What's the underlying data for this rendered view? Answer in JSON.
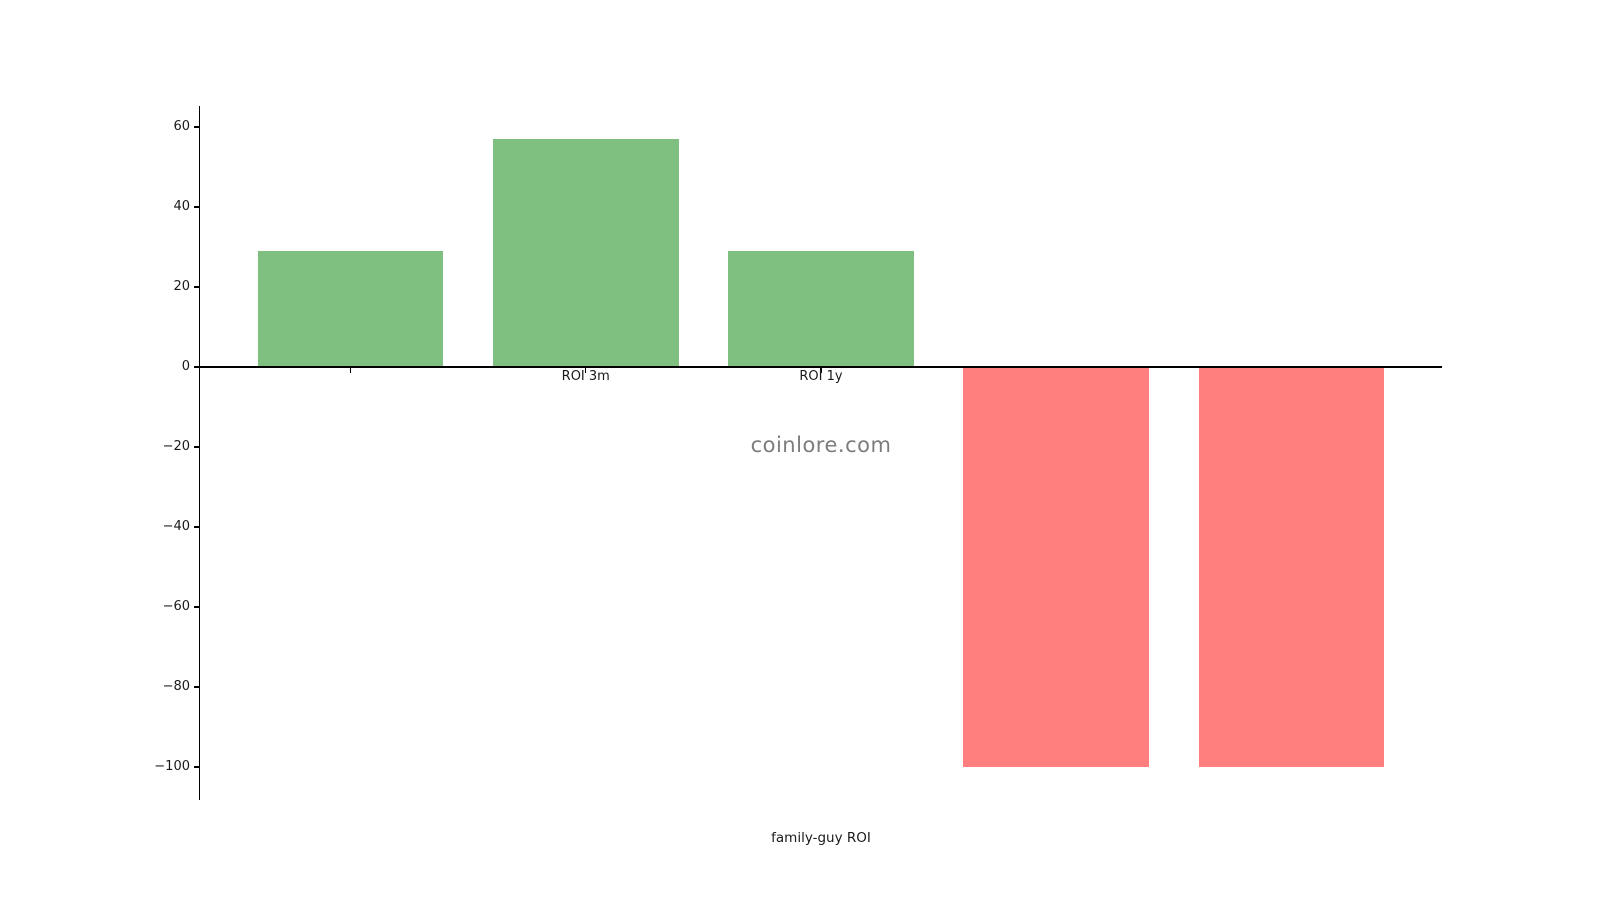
{
  "page": {
    "background": "#ffffff"
  },
  "watermark": {
    "text": "coinlore.com",
    "color": "#7d7d7d"
  },
  "chart_data": {
    "type": "bar",
    "title": "family-guy ROI",
    "xlabel": "",
    "ylabel": "",
    "categories": [
      "",
      "ROI 3m",
      "ROI 1y",
      "",
      ""
    ],
    "values": [
      29,
      57,
      29,
      -100,
      -100
    ],
    "bar_colors": {
      "positive": "#7FBF7F",
      "negative": "#FF7F7F"
    },
    "axis_color": "#000000",
    "tick_label_color": "#1a1a1a",
    "ylim": [
      -108.25,
      65.25
    ],
    "yticks": [
      {
        "value": 60,
        "label": "60"
      },
      {
        "value": 40,
        "label": "40"
      },
      {
        "value": 20,
        "label": "20"
      },
      {
        "value": 0,
        "label": "0"
      },
      {
        "value": -20,
        "label": "−20"
      },
      {
        "value": -40,
        "label": "−40"
      },
      {
        "value": -60,
        "label": "−60"
      },
      {
        "value": -80,
        "label": "−80"
      },
      {
        "value": -100,
        "label": "−100"
      }
    ],
    "grid": false,
    "legend": null
  }
}
